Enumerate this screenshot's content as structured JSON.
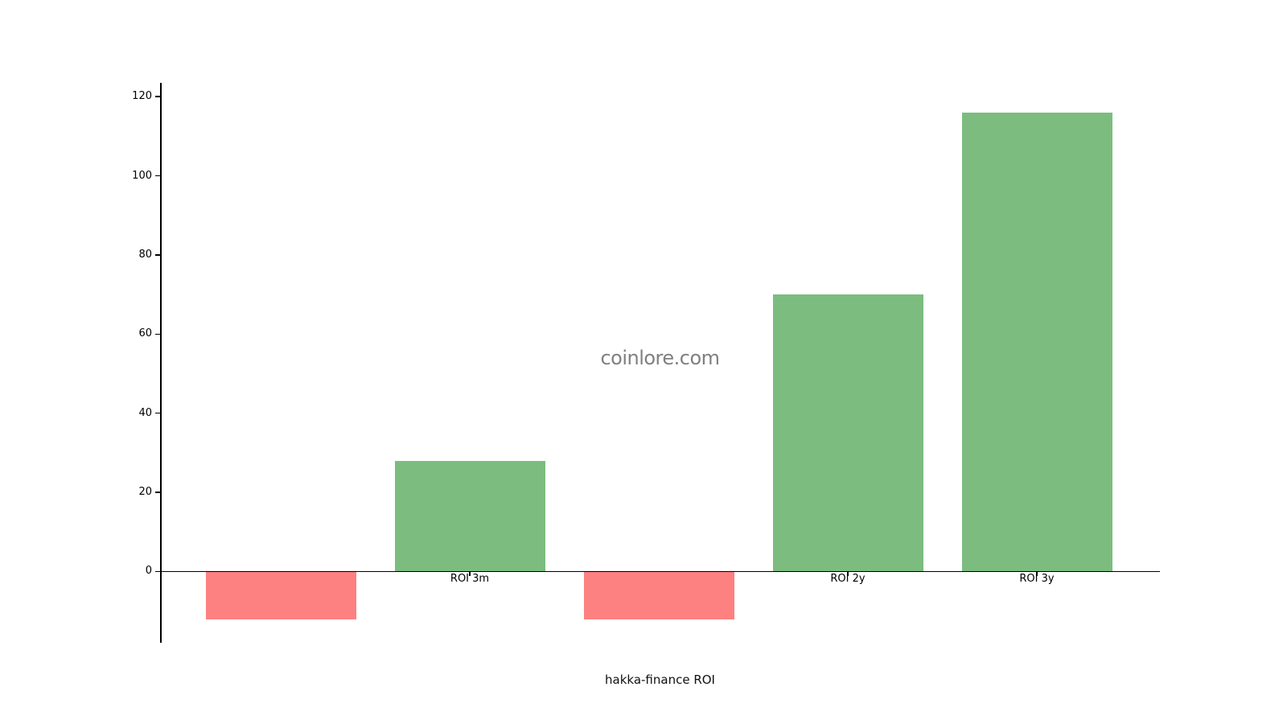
{
  "page": {
    "background_color": "#ffffff"
  },
  "chart_data": {
    "type": "bar",
    "title": "hakka-finance ROI",
    "watermark": "coinlore.com",
    "categories": [
      "",
      "ROI 3m",
      "",
      "ROI 2y",
      "ROI 3y"
    ],
    "values": [
      -12,
      28,
      -12,
      70,
      116
    ],
    "bar_colors": [
      "#fd8181",
      "#7cbd7f",
      "#fd8181",
      "#7cbd7f",
      "#7cbd7f"
    ],
    "positive_color": "#7cbd7f",
    "negative_color": "#fd8181",
    "yticks": [
      0,
      20,
      40,
      60,
      80,
      100,
      120
    ],
    "ylim": [
      -18,
      123.5
    ],
    "xlabel": "",
    "ylabel": "",
    "grid": false,
    "legend": null,
    "axis_color": "#000000",
    "tick_label_color": "#000000",
    "title_color": "#111111",
    "watermark_color": "#808080"
  }
}
